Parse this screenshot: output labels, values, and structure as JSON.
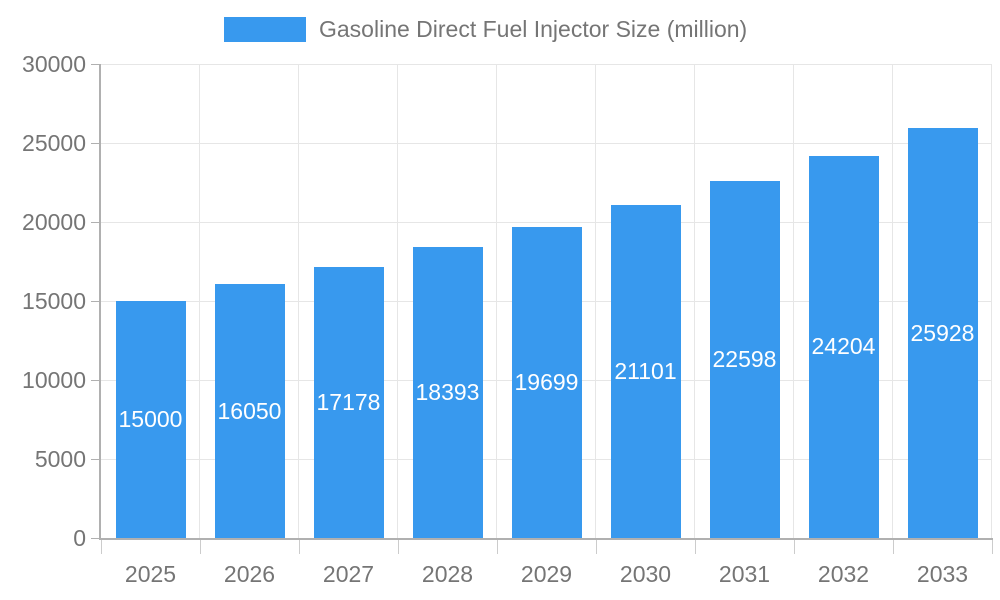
{
  "legend": {
    "label": "Gasoline Direct Fuel Injector Size (million)",
    "position": "top"
  },
  "chart_data": {
    "type": "bar",
    "title": "",
    "xlabel": "",
    "ylabel": "",
    "categories": [
      "2025",
      "2026",
      "2027",
      "2028",
      "2029",
      "2030",
      "2031",
      "2032",
      "2033"
    ],
    "series": [
      {
        "name": "Gasoline Direct Fuel Injector Size (million)",
        "values": [
          15000,
          16050,
          17178,
          18393,
          19699,
          21101,
          22598,
          24204,
          25928
        ]
      }
    ],
    "value_labels_visible": true,
    "value_label_position": "inside-center",
    "ylim": [
      0,
      30000
    ],
    "yticks": [
      0,
      5000,
      10000,
      15000,
      20000,
      25000,
      30000
    ],
    "grid": true,
    "legend_position": "top",
    "colors": {
      "bar": "#3899ee",
      "value_label": "#ffffff",
      "axis_text": "#757575",
      "grid_line": "#e6e6e6",
      "axis_line": "#b0b0b0",
      "tick_mark": "#cccccc"
    }
  }
}
